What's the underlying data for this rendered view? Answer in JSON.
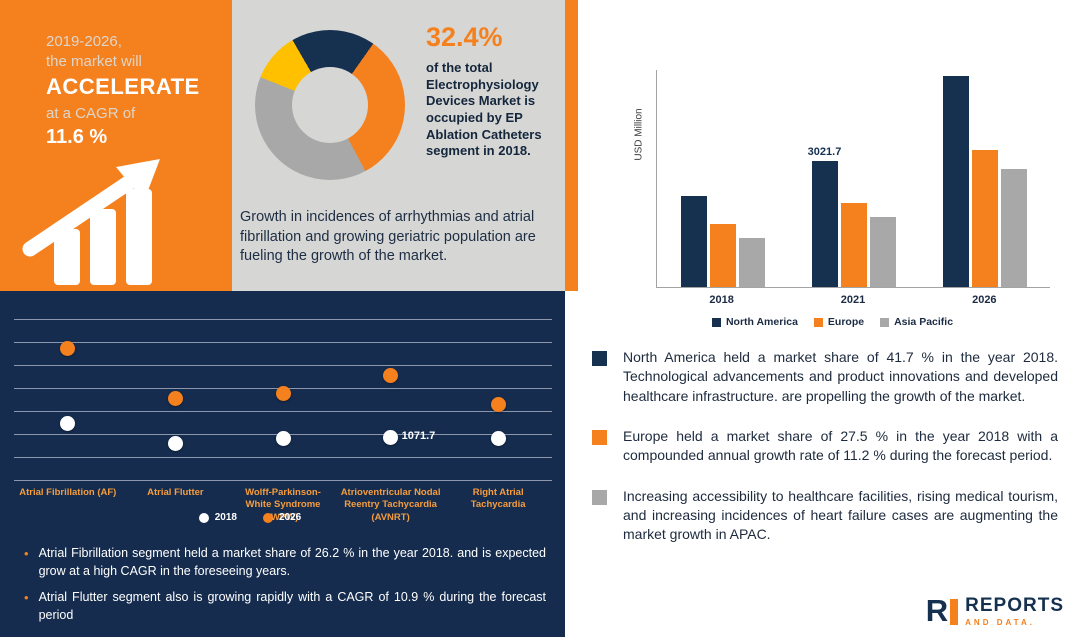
{
  "colors": {
    "orange": "#f5801e",
    "navy": "#16304f",
    "panel_navy": "#152c4e",
    "panel_gray": "#d6d6d4",
    "bar_gray": "#a8a8a8",
    "yellow": "#ffc000",
    "white": "#ffffff"
  },
  "accelerate_panel": {
    "line1": "2019-2026,",
    "line2": "the market will",
    "line3": "ACCELERATE",
    "line4": "at a CAGR of",
    "line5": "11.6 %"
  },
  "donut_panel": {
    "stat": "32.4%",
    "stat_desc": "of the total Electrophysiology Devices Market is occupied by EP Ablation Catheters segment in 2018.",
    "body": "Growth in incidences of arrhythmias and atrial fibrillation and growing geriatric population are fueling the growth of the market."
  },
  "dot_panel": {
    "bullets": [
      "Atrial Fibrillation segment held a market share of 26.2 % in the year 2018. and is expected grow at a high CAGR in the foreseeing years.",
      "Atrial Flutter segment also is growing rapidly with a CAGR of 10.9 % during the forecast period"
    ]
  },
  "right_bullets": [
    {
      "color": "#16304f",
      "text": "North America held a market share of 41.7 % in the year 2018. Technological advancements and product innovations and developed healthcare infrastructure. are propelling the growth of the market."
    },
    {
      "color": "#f5801e",
      "text": "Europe held a market share of 27.5 % in the year 2018 with a compounded annual growth rate of 11.2 % during the forecast period."
    },
    {
      "color": "#a8a8a8",
      "text": "Increasing accessibility to healthcare facilities, rising medical tourism, and increasing incidences of heart failure cases are augmenting the market growth in APAC."
    }
  ],
  "logo": {
    "mark": "R",
    "reports": "REPORTS",
    "and_data": "AND DATA."
  },
  "chart_data": [
    {
      "type": "pie",
      "rotation": -30,
      "slices": [
        {
          "label": "other",
          "value": 18.1,
          "color": "#16304f"
        },
        {
          "label": "EP Ablation Catheters",
          "value": 32.4,
          "color": "#f5801e"
        },
        {
          "label": "other",
          "value": 38.9,
          "color": "#a8a8a8"
        },
        {
          "label": "other",
          "value": 10.6,
          "color": "#ffc000"
        }
      ]
    },
    {
      "type": "scatter",
      "categories": [
        "Atrial Fibrillation (AF)",
        "Atrial Flutter",
        "Wolff-Parkinson-White Syndrome (WPW)",
        "Atrioventricular Nodal Reentry Tachycardia (AVNRT)",
        "Right Atrial Tachycardia"
      ],
      "series": [
        {
          "name": "2018",
          "color": "#ffffff",
          "values": [
            1430,
            915,
            1060,
            1071.7,
            1060
          ]
        },
        {
          "name": "2026",
          "color": "#f5801e",
          "values": [
            3280,
            2025,
            2170,
            2615,
            1900
          ]
        }
      ],
      "ymax": 4000,
      "gridlines": 8,
      "annotation": {
        "series": "2018",
        "category_index": 3,
        "text": "1071.7"
      },
      "legend_position": "bottom"
    },
    {
      "type": "bar",
      "categories": [
        "2018",
        "2021",
        "2026"
      ],
      "series": [
        {
          "name": "North America",
          "color": "#16304f",
          "values": [
            2190,
            3021.7,
            5050
          ]
        },
        {
          "name": "Europe",
          "color": "#f5801e",
          "values": [
            1500,
            2020,
            3280
          ]
        },
        {
          "name": "Asia Pacific",
          "color": "#a8a8a8",
          "values": [
            1170,
            1670,
            2830
          ]
        }
      ],
      "ylabel": "USD Million",
      "ymax": 5200,
      "annotation": {
        "series": "North America",
        "category": "2021",
        "text": "3021.7"
      },
      "legend_position": "bottom"
    }
  ]
}
